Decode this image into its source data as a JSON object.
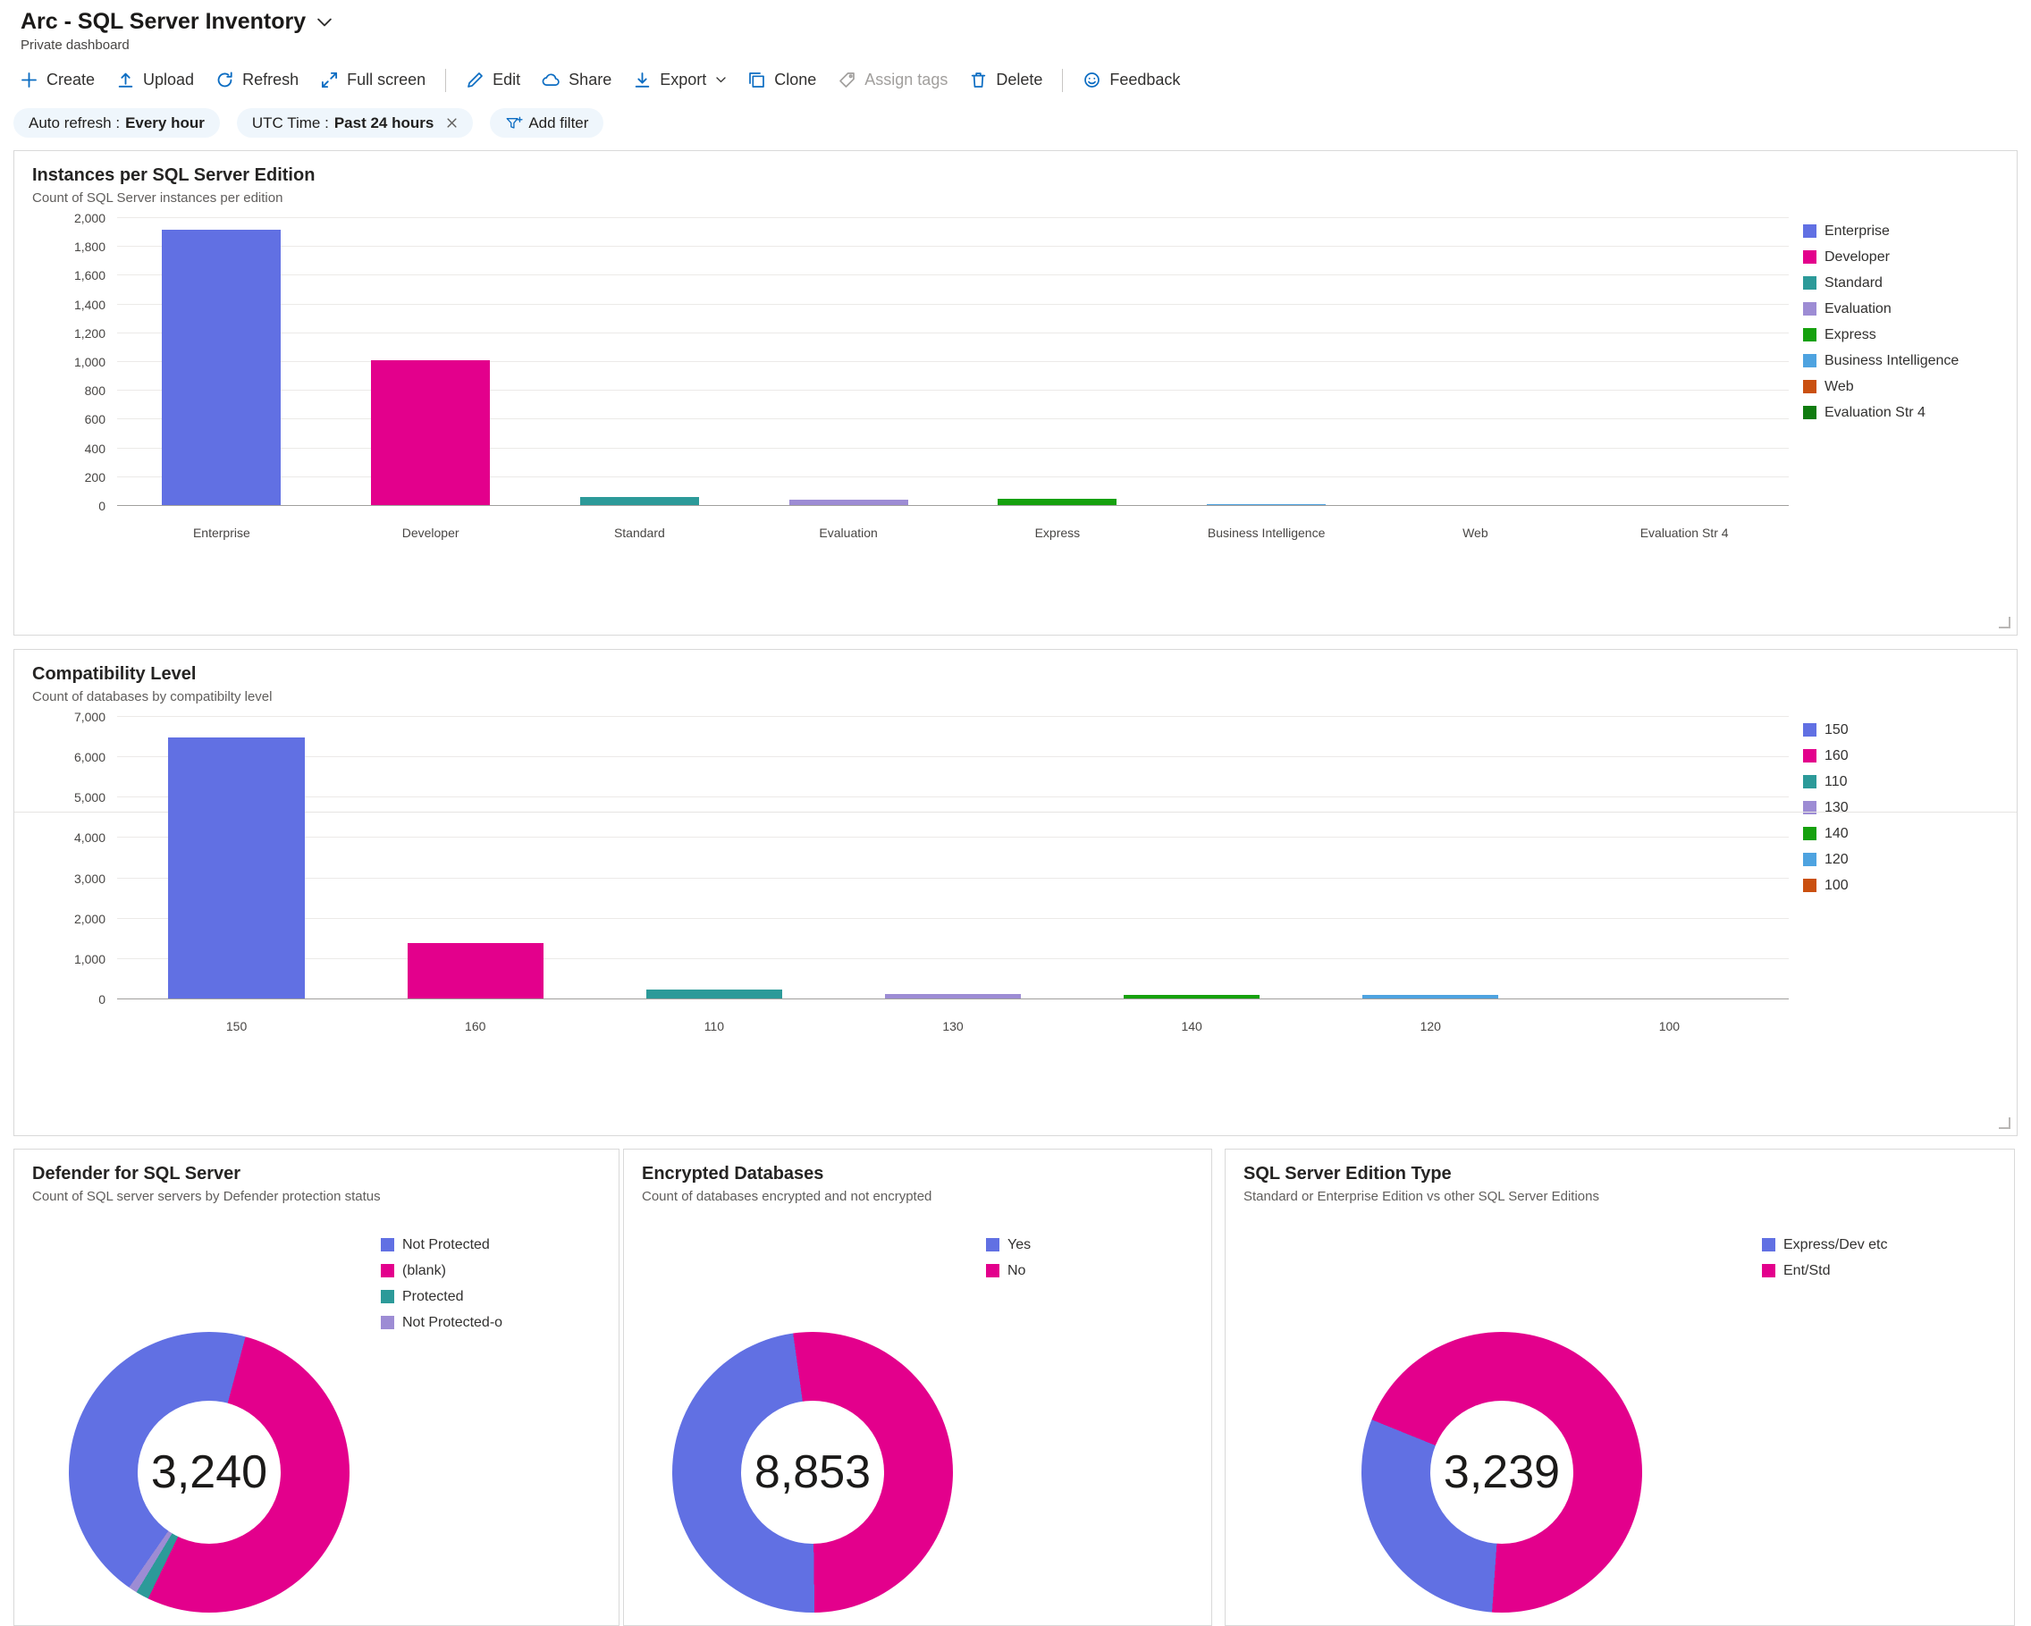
{
  "header": {
    "title": "Arc - SQL Server Inventory",
    "subtitle": "Private dashboard"
  },
  "toolbar": {
    "create": "Create",
    "upload": "Upload",
    "refresh": "Refresh",
    "fullscreen": "Full screen",
    "edit": "Edit",
    "share": "Share",
    "export": "Export",
    "clone": "Clone",
    "assign_tags": "Assign tags",
    "delete": "Delete",
    "feedback": "Feedback"
  },
  "filters": {
    "auto_refresh_label": "Auto refresh :",
    "auto_refresh_value": "Every hour",
    "utc_label": "UTC Time :",
    "utc_value": "Past 24 hours",
    "add_filter": "Add filter"
  },
  "icons": {
    "title_chevron": "chevron-down",
    "create": "plus",
    "upload": "arrow-up",
    "refresh": "circular-arrow",
    "fullscreen": "diagonal-arrows",
    "edit": "pencil",
    "share": "cloud",
    "export": "arrow-down",
    "export_chevron": "chevron-down",
    "clone": "overlapping-squares",
    "assign_tags": "tag",
    "delete": "trash",
    "feedback": "smiley",
    "utc_close": "x",
    "add_filter": "funnel-plus"
  },
  "accent_color": "#0b6cc2",
  "chart_data": [
    {
      "id": "instances",
      "type": "bar",
      "title": "Instances per SQL Server Edition",
      "subtitle": "Count of SQL Server instances per edition",
      "categories": [
        "Enterprise",
        "Developer",
        "Standard",
        "Evaluation",
        "Express",
        "Business Intelligence",
        "Web",
        "Evaluation Str 4"
      ],
      "values": [
        1920,
        1010,
        65,
        45,
        50,
        10,
        8,
        5
      ],
      "colors": [
        "#6170e3",
        "#e3008c",
        "#2c9a99",
        "#9d8cd4",
        "#16a10e",
        "#4ea3e0",
        "#ca5010",
        "#107c10"
      ],
      "ylim": [
        0,
        2000
      ],
      "ytick_step": 200,
      "grid": true,
      "legend_position": "right"
    },
    {
      "id": "compat",
      "type": "bar",
      "title": "Compatibility Level",
      "subtitle": "Count of databases by compatibilty level",
      "categories": [
        "150",
        "160",
        "110",
        "130",
        "140",
        "120",
        "100"
      ],
      "values": [
        6500,
        1400,
        240,
        140,
        120,
        110,
        30
      ],
      "colors": [
        "#6170e3",
        "#e3008c",
        "#2c9a99",
        "#9d8cd4",
        "#16a10e",
        "#4ea3e0",
        "#ca5010"
      ],
      "ylim": [
        0,
        7000
      ],
      "ytick_step": 1000,
      "grid": true,
      "legend_position": "right"
    },
    {
      "id": "defender",
      "type": "donut",
      "title": "Defender for SQL Server",
      "subtitle": "Count of SQL server servers by Defender protection status",
      "center_value": "3,240",
      "start_angle": 15,
      "slices": [
        {
          "label": "(blank)",
          "pct": 53,
          "color": "#e3008c"
        },
        {
          "label": "Protected",
          "pct": 1.5,
          "color": "#2c9a99"
        },
        {
          "label": "Not Protected-o",
          "pct": 1,
          "color": "#9d8cd4"
        },
        {
          "label": "Not Protected",
          "pct": 44.5,
          "color": "#6170e3"
        }
      ],
      "legend": [
        {
          "label": "Not Protected",
          "color": "#6170e3"
        },
        {
          "label": "(blank)",
          "color": "#e3008c"
        },
        {
          "label": "Protected",
          "color": "#2c9a99"
        },
        {
          "label": "Not Protected-o",
          "color": "#9d8cd4"
        }
      ]
    },
    {
      "id": "encrypted",
      "type": "donut",
      "title": "Encrypted Databases",
      "subtitle": "Count of databases encrypted and not encrypted",
      "center_value": "8,853",
      "start_angle": -8,
      "slices": [
        {
          "label": "No",
          "pct": 52,
          "color": "#e3008c"
        },
        {
          "label": "Yes",
          "pct": 48,
          "color": "#6170e3"
        }
      ],
      "legend": [
        {
          "label": "Yes",
          "color": "#6170e3"
        },
        {
          "label": "No",
          "color": "#e3008c"
        }
      ]
    },
    {
      "id": "edition_type",
      "type": "donut",
      "title": "SQL Server Edition Type",
      "subtitle": "Standard or Enterprise Edition vs other SQL Server Editions",
      "center_value": "3,239",
      "start_angle": -68,
      "slices": [
        {
          "label": "Ent/Std",
          "pct": 70,
          "color": "#e3008c"
        },
        {
          "label": "Express/Dev etc",
          "pct": 30,
          "color": "#6170e3"
        }
      ],
      "legend": [
        {
          "label": "Express/Dev etc",
          "color": "#6170e3"
        },
        {
          "label": "Ent/Std",
          "color": "#e3008c"
        }
      ]
    }
  ]
}
